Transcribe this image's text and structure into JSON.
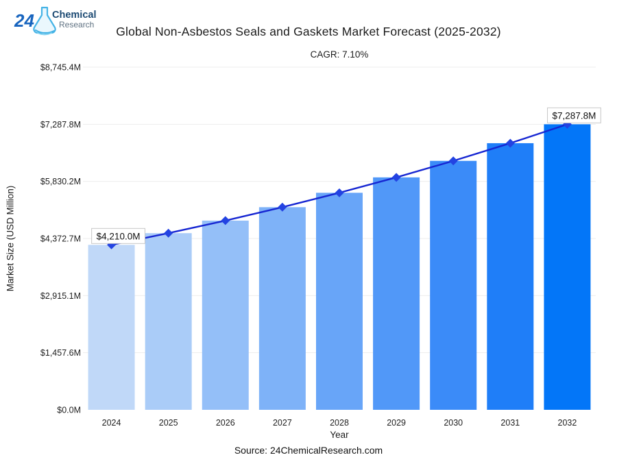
{
  "logo": {
    "number": "24",
    "line1": "Chemical",
    "line2": "Research"
  },
  "source": "Source: 24ChemicalResearch.com",
  "chart_data": {
    "type": "bar",
    "overlay": "line-with-diamond-markers",
    "title": "Global Non-Asbestos Seals and Gaskets Market Forecast (2025-2032)",
    "subtitle": "CAGR: 7.10%",
    "categories": [
      "2024",
      "2025",
      "2026",
      "2027",
      "2028",
      "2029",
      "2030",
      "2031",
      "2032"
    ],
    "values": [
      4210.0,
      4508.9,
      4829.0,
      5171.9,
      5539.1,
      5932.4,
      6353.6,
      6804.7,
      7287.8
    ],
    "xlabel": "Year",
    "ylabel": "Market Size (USD Million)",
    "ylim": [
      0,
      8745.4
    ],
    "yticks": [
      0.0,
      1457.6,
      2915.1,
      4372.7,
      5830.2,
      7287.8,
      8745.4
    ],
    "ytick_labels": [
      "$0.0M",
      "$1,457.6M",
      "$2,915.1M",
      "$4,372.7M",
      "$5,830.2M",
      "$7,287.8M",
      "$8,745.4M"
    ],
    "annotations": [
      {
        "index": 0,
        "text": "$4,210.0M"
      },
      {
        "index": 8,
        "text": "$7,287.8M"
      }
    ],
    "grid": "on",
    "legend_position": "none",
    "bar_colors": [
      "#c0d8f8",
      "#aaccf8",
      "#94bff8",
      "#7eb2f8",
      "#68a5f8",
      "#5198f8",
      "#3b8bf8",
      "#1f7ef8",
      "#0376f8"
    ],
    "line_color": "#1626d2",
    "marker_color": "#2343e2",
    "grid_color": "#ededed",
    "tick_color": "#1e1e1e",
    "annotation_box_border": "#c6c6c6"
  }
}
